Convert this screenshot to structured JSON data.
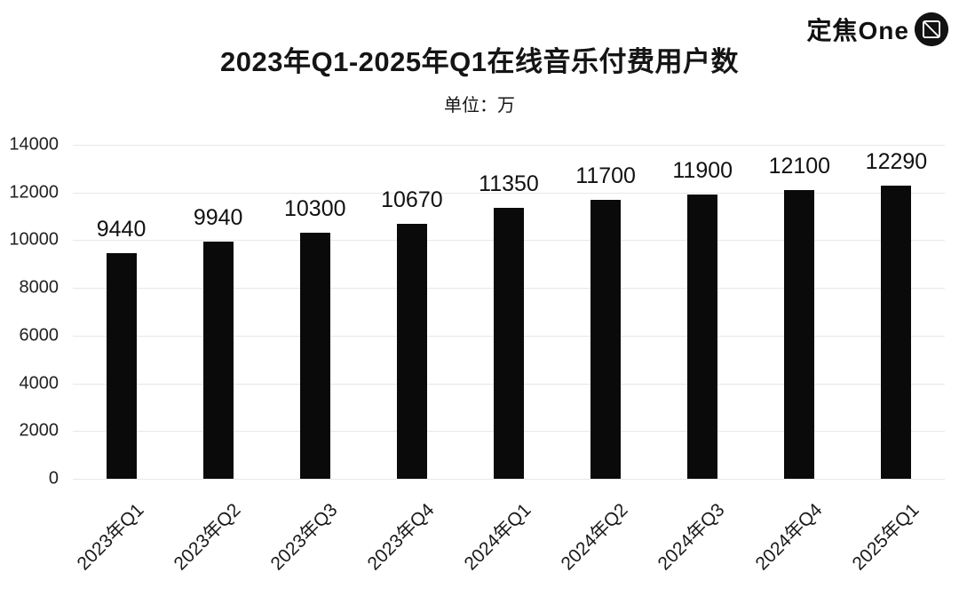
{
  "page": {
    "background": "#ffffff"
  },
  "logo": {
    "text": "定焦One"
  },
  "chart_data": {
    "type": "bar",
    "title": "2023年Q1-2025年Q1在线音乐付费用户数",
    "subtitle": "单位：万",
    "categories": [
      "2023年Q1",
      "2023年Q2",
      "2023年Q3",
      "2023年Q4",
      "2024年Q1",
      "2024年Q2",
      "2024年Q3",
      "2024年Q4",
      "2025年Q1"
    ],
    "values": [
      9440,
      9940,
      10300,
      10670,
      11350,
      11700,
      11900,
      12100,
      12290
    ],
    "xlabel": "",
    "ylabel": "",
    "ylim": [
      0,
      14000
    ],
    "yticks": [
      0,
      2000,
      4000,
      6000,
      8000,
      10000,
      12000,
      14000
    ],
    "grid": true,
    "legend": "none",
    "bar_color": "#0a0a0a",
    "gridline_color": "#e7e7e7",
    "text_color": "#111111",
    "x_tick_rotation_deg": 45
  }
}
